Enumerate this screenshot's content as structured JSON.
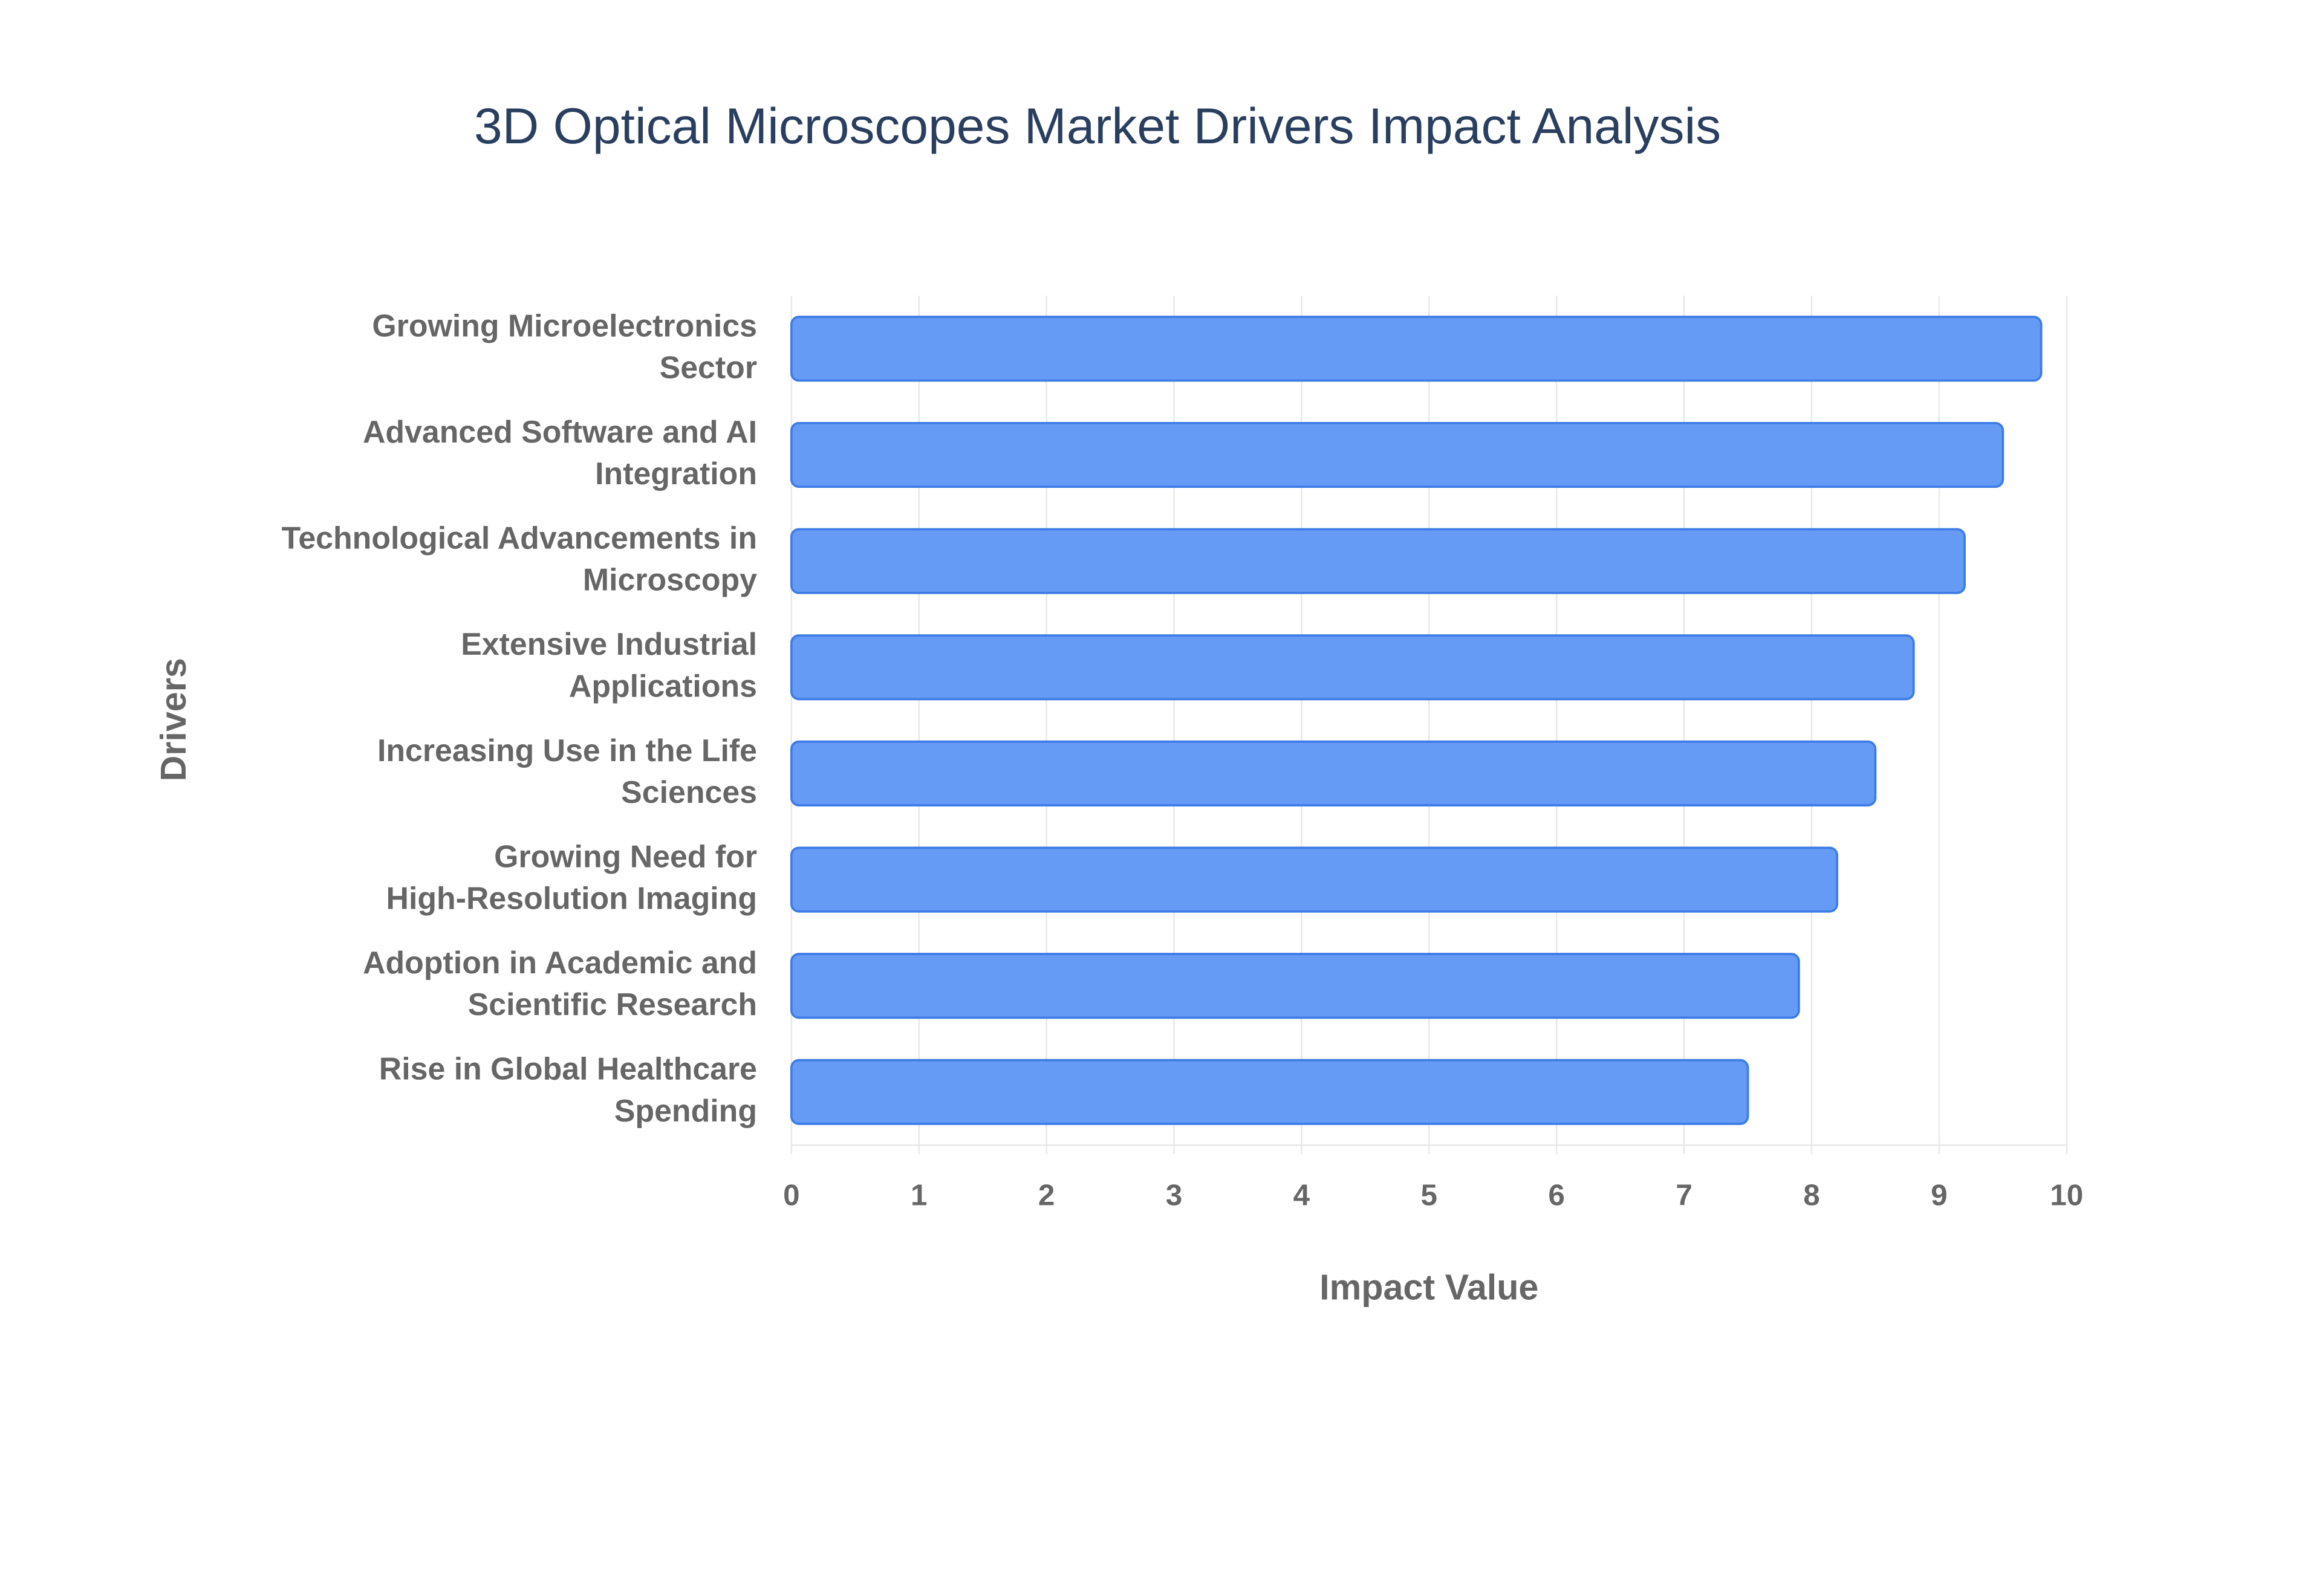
{
  "chart_data": {
    "type": "bar",
    "orientation": "horizontal",
    "title": "3D Optical Microscopes Market Drivers Impact Analysis",
    "x_label": "Impact Value",
    "y_label": "Drivers",
    "categories": [
      "Growing Microelectronics\nSector",
      "Advanced Software and AI\nIntegration",
      "Technological Advancements in\nMicroscopy",
      "Extensive Industrial\nApplications",
      "Increasing Use in the Life\nSciences",
      "Growing Need for\nHigh-Resolution Imaging",
      "Adoption in Academic and\nScientific Research",
      "Rise in Global Healthcare\nSpending"
    ],
    "values": [
      9.8,
      9.5,
      9.2,
      8.8,
      8.5,
      8.2,
      7.9,
      7.5
    ],
    "color": "#6399f5",
    "xlim": [
      0,
      10
    ],
    "xticks": [
      0,
      1,
      2,
      3,
      4,
      5,
      6,
      7,
      8,
      9,
      10
    ],
    "grid": true
  }
}
